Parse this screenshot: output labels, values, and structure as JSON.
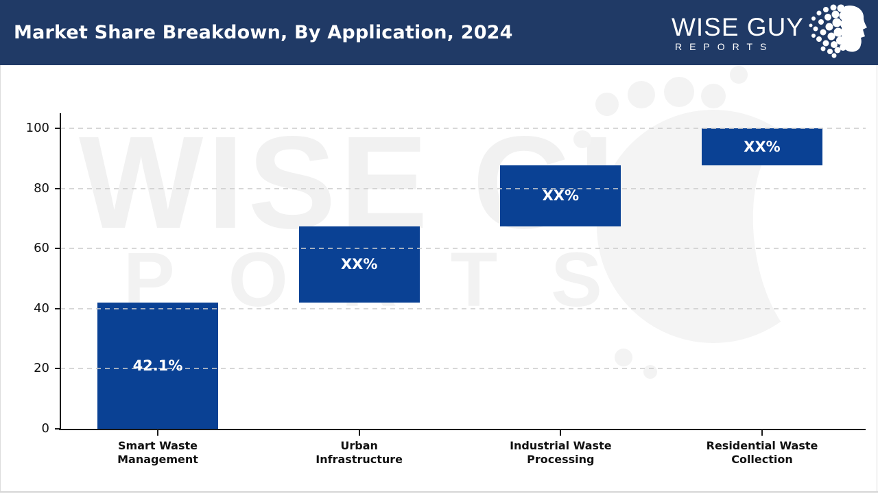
{
  "header": {
    "title": "Market Share Breakdown, By Application, 2024",
    "logo": {
      "wordmark": "WISE GUY",
      "subtext": "REPORTS"
    }
  },
  "watermark": {
    "line1": "WISE GUY",
    "line2": "PORTS"
  },
  "chart_data": {
    "type": "bar",
    "variant": "waterfall",
    "title": "Market Share Breakdown, By Application, 2024",
    "categories": [
      "Smart Waste Management",
      "Urban Infrastructure",
      "Industrial Waste Processing",
      "Residential Waste Collection"
    ],
    "category_lines": [
      [
        "Smart Waste",
        "Management"
      ],
      [
        "Urban",
        "Infrastructure"
      ],
      [
        "Industrial Waste",
        "Processing"
      ],
      [
        "Residential Waste",
        "Collection"
      ]
    ],
    "segments": [
      {
        "category": "Smart Waste Management",
        "start": 0,
        "end": 42.1,
        "label": "42.1%"
      },
      {
        "category": "Urban Infrastructure",
        "start": 42.1,
        "end": 67.4,
        "label": "XX%"
      },
      {
        "category": "Industrial Waste Processing",
        "start": 67.4,
        "end": 87.7,
        "label": "XX%"
      },
      {
        "category": "Residential Waste Collection",
        "start": 87.7,
        "end": 100,
        "label": "XX%"
      }
    ],
    "xlabel": "",
    "ylabel": "",
    "ylim": [
      0,
      100
    ],
    "yticks": [
      0,
      20,
      40,
      60,
      80,
      100
    ],
    "grid": true,
    "legend": "none",
    "bar_color": "#0a4194",
    "bar_label_color": "#ffffff",
    "header_bg_color": "#203a66"
  }
}
